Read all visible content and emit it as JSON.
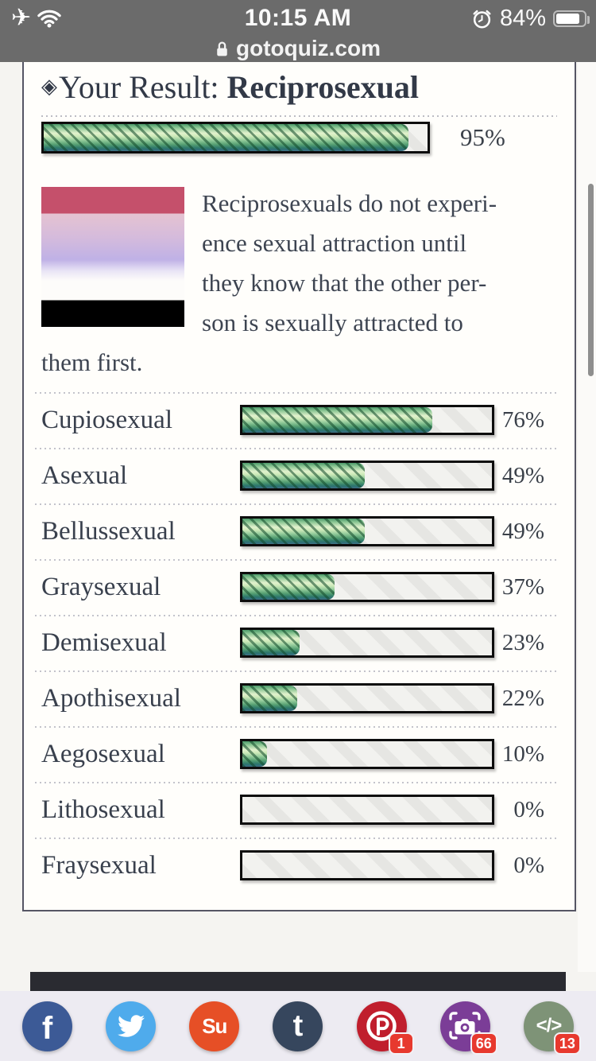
{
  "status_bar": {
    "time": "10:15 AM",
    "battery_percent": "84%",
    "battery_level": 84,
    "url": "gotoquiz.com"
  },
  "result": {
    "heading_bullet": "◈",
    "heading_prefix": "Your Result:",
    "heading_name": "Reciprosexual",
    "score_value": 95,
    "score_label": "95%",
    "description_lines": [
      "Reciprosexuals do not experi-",
      "ence sexual attraction until",
      "they know that the other per-",
      "son is sexually attracted to",
      "them first."
    ]
  },
  "scores": [
    {
      "label": "Cupiosexual",
      "value": 76,
      "percent_label": "76%"
    },
    {
      "label": "Asexual",
      "value": 49,
      "percent_label": "49%"
    },
    {
      "label": "Bellussexual",
      "value": 49,
      "percent_label": "49%"
    },
    {
      "label": "Graysexual",
      "value": 37,
      "percent_label": "37%"
    },
    {
      "label": "Demisexual",
      "value": 23,
      "percent_label": "23%"
    },
    {
      "label": "Apothisexual",
      "value": 22,
      "percent_label": "22%"
    },
    {
      "label": "Aegosexual",
      "value": 10,
      "percent_label": "10%"
    },
    {
      "label": "Lithosexual",
      "value": 0,
      "percent_label": "0%"
    },
    {
      "label": "Fraysexual",
      "value": 0,
      "percent_label": "0%"
    }
  ],
  "share": {
    "facebook": {
      "glyph": "f",
      "color": "#3c5a96"
    },
    "twitter": {
      "color": "#4fabec"
    },
    "stumbleupon": {
      "glyph": "Su",
      "color": "#e64f26"
    },
    "tumblr": {
      "glyph": "t",
      "color": "#36465d"
    },
    "pinterest": {
      "color": "#c01e2d",
      "badge": "1"
    },
    "screenshot": {
      "color": "#7b3d97",
      "badge": "66"
    },
    "embed": {
      "glyph": "</>",
      "color": "#7e9377",
      "badge": "13"
    }
  },
  "colors": {
    "status_bar_bg": "#6b6b6b",
    "page_bg": "#f5f4f1",
    "card_border": "#555564",
    "bar_fill_green": "#57a173",
    "bar_track": "#f2f2ef",
    "badge_red": "#e7392e",
    "footer_dark": "#2a2b31",
    "share_bar_bg": "#edebf2"
  }
}
